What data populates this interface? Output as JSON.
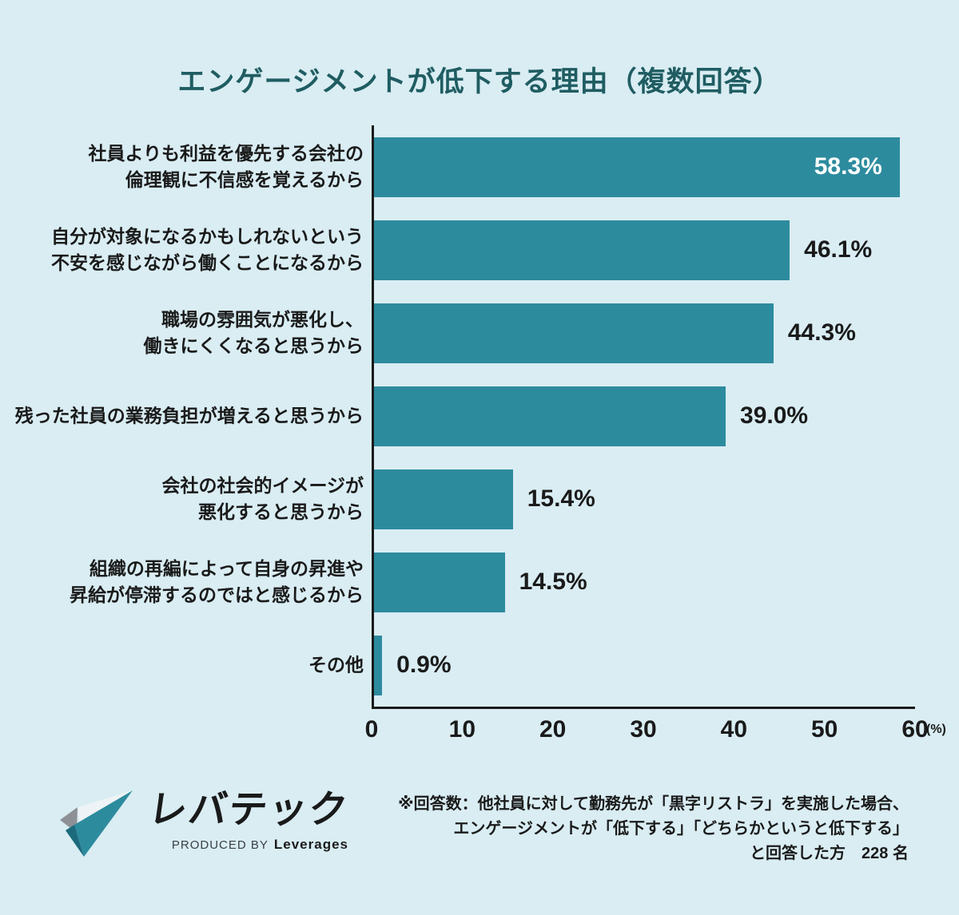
{
  "title": "エンゲージメントが低下する理由（複数回答）",
  "chart_data": {
    "type": "bar",
    "orientation": "horizontal",
    "title": "エンゲージメントが低下する理由（複数回答）",
    "categories": [
      "社員よりも利益を優先する会社の\n倫理観に不信感を覚えるから",
      "自分が対象になるかもしれないという\n不安を感じながら働くことになるから",
      "職場の雰囲気が悪化し、\n働きにくくなると思うから",
      "残った社員の業務負担が増えると思うから",
      "会社の社会的イメージが\n悪化すると思うから",
      "組織の再編によって自身の昇進や\n昇給が停滞するのではと感じるから",
      "その他"
    ],
    "values": [
      58.3,
      46.1,
      44.3,
      39.0,
      15.4,
      14.5,
      0.9
    ],
    "value_labels": [
      "58.3%",
      "46.1%",
      "44.3%",
      "39.0%",
      "15.4%",
      "14.5%",
      "0.9%"
    ],
    "value_label_inside": [
      true,
      false,
      false,
      false,
      false,
      false,
      false
    ],
    "xlim": [
      0,
      60
    ],
    "x_ticks": [
      0,
      10,
      20,
      30,
      40,
      50,
      60
    ],
    "x_unit": "(%)",
    "grid": false,
    "legend": false,
    "bar_color": "#2d8b9e",
    "background_color": "#d9edf3",
    "title_color": "#1f5d62",
    "value_inside_text_color": "#ffffff",
    "text_color": "#1a1a1a"
  },
  "footer": {
    "note_lines": [
      "※回答数：他社員に対して勤務先が「黒字リストラ」を実施した場合、",
      "エンゲージメントが「低下する」「どちらかというと低下する」",
      "と回答した方　228 名"
    ],
    "logo": {
      "brand": "レバテック",
      "produced_by": "PRODUCED BY",
      "company": "Leverages"
    }
  }
}
